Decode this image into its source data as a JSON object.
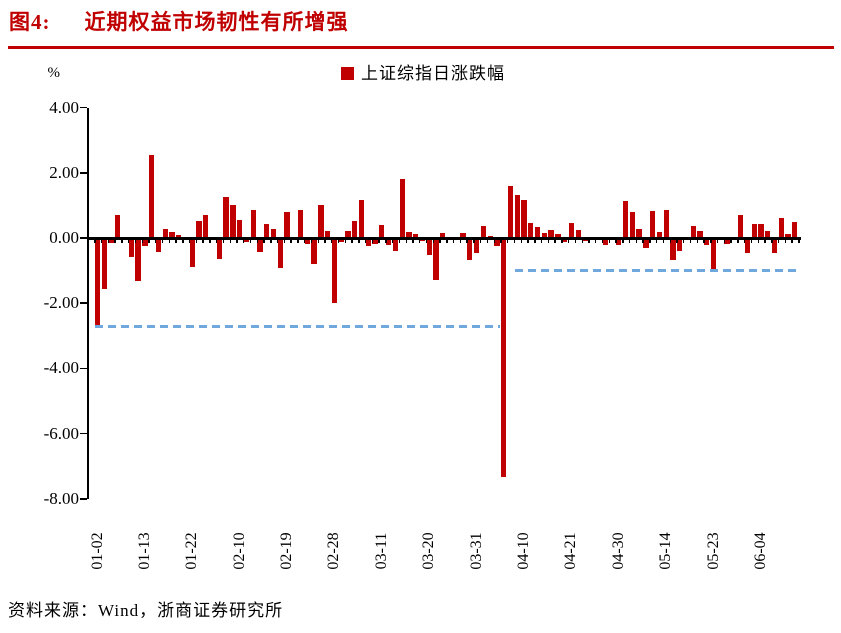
{
  "title": {
    "prefix": "图4:",
    "text": "近期权益市场韧性有所增强"
  },
  "legend": {
    "label": "上证综指日涨跌幅",
    "marker_color": "#C00000"
  },
  "y_axis": {
    "unit_label": "%",
    "ticks": [
      "4.00",
      "2.00",
      "0.00",
      "-2.00",
      "-4.00",
      "-6.00",
      "-8.00"
    ],
    "max": 4.0,
    "min": -8.0
  },
  "source": "资料来源：Wind，浙商证券研究所",
  "colors": {
    "bar": "#C00000",
    "title": "#C00000",
    "rule": "#C00000",
    "dashed_reference_line": "#6FA8DC",
    "axis": "#000000"
  },
  "chart_data": {
    "type": "bar",
    "title": "上证综指日涨跌幅",
    "series_name": "上证综指日涨跌幅",
    "ylabel": "%",
    "ylim": [
      -8.0,
      4.0
    ],
    "grid": false,
    "legend_position": "top-center",
    "x": [
      "01-02",
      "01-03",
      "01-06",
      "01-07",
      "01-08",
      "01-09",
      "01-10",
      "01-13",
      "01-14",
      "01-15",
      "01-16",
      "01-17",
      "01-20",
      "01-21",
      "01-22",
      "01-23",
      "01-24",
      "01-27",
      "02-05",
      "02-06",
      "02-07",
      "02-10",
      "02-11",
      "02-12",
      "02-13",
      "02-14",
      "02-17",
      "02-18",
      "02-19",
      "02-20",
      "02-21",
      "02-24",
      "02-25",
      "02-26",
      "02-27",
      "02-28",
      "03-03",
      "03-04",
      "03-05",
      "03-06",
      "03-07",
      "03-10",
      "03-11",
      "03-12",
      "03-13",
      "03-14",
      "03-17",
      "03-18",
      "03-19",
      "03-20",
      "03-21",
      "03-24",
      "03-25",
      "03-26",
      "03-27",
      "03-28",
      "03-31",
      "04-01",
      "04-02",
      "04-03",
      "04-07",
      "04-08",
      "04-09",
      "04-10",
      "04-11",
      "04-14",
      "04-15",
      "04-16",
      "04-17",
      "04-18",
      "04-21",
      "04-22",
      "04-23",
      "04-24",
      "04-25",
      "04-28",
      "04-29",
      "04-30",
      "05-06",
      "05-07",
      "05-08",
      "05-09",
      "05-12",
      "05-13",
      "05-14",
      "05-15",
      "05-16",
      "05-19",
      "05-20",
      "05-21",
      "05-22",
      "05-23",
      "05-26",
      "05-27",
      "05-28",
      "05-29",
      "05-30",
      "06-03",
      "06-04",
      "06-05",
      "06-06",
      "06-09",
      "06-10",
      "06-11"
    ],
    "values": [
      -2.66,
      -1.57,
      -0.14,
      0.71,
      0.02,
      -0.58,
      -1.33,
      -0.25,
      2.54,
      -0.43,
      0.28,
      0.18,
      0.08,
      -0.05,
      -0.89,
      0.51,
      0.7,
      -0.06,
      -0.65,
      1.27,
      1.01,
      0.56,
      -0.12,
      0.85,
      -0.42,
      0.43,
      0.27,
      -0.93,
      0.81,
      -0.02,
      0.85,
      -0.18,
      -0.8,
      1.02,
      0.23,
      -1.98,
      -0.12,
      0.22,
      0.53,
      1.17,
      -0.25,
      -0.19,
      0.41,
      -0.23,
      -0.39,
      1.81,
      0.19,
      0.11,
      -0.1,
      -0.51,
      -1.29,
      0.15,
      0.0,
      -0.04,
      0.15,
      -0.67,
      -0.46,
      0.38,
      0.05,
      -0.24,
      -7.34,
      1.58,
      1.31,
      1.16,
      0.45,
      0.35,
      0.15,
      0.26,
      0.13,
      -0.11,
      0.45,
      0.25,
      -0.1,
      0.03,
      -0.07,
      -0.2,
      -0.05,
      -0.23,
      1.13,
      0.8,
      0.28,
      -0.3,
      0.82,
      0.17,
      0.86,
      -0.68,
      -0.4,
      0.0,
      0.38,
      0.21,
      -0.22,
      -0.94,
      -0.05,
      -0.18,
      0.02,
      0.7,
      -0.47,
      0.43,
      0.42,
      0.23,
      -0.47,
      0.6,
      0.13,
      0.48
    ],
    "x_tick_labels": [
      "01-02",
      "01-13",
      "01-22",
      "02-10",
      "02-19",
      "02-28",
      "03-11",
      "03-20",
      "03-31",
      "04-10",
      "04-21",
      "04-30",
      "05-14",
      "05-23",
      "06-04"
    ],
    "reference_lines": [
      {
        "value": -2.7,
        "from_index": 0,
        "to_index": 59,
        "style": "dashed",
        "color": "#6FA8DC"
      },
      {
        "value": -1.01,
        "from_index": 62,
        "to_index": 103,
        "style": "dashed",
        "color": "#6FA8DC"
      }
    ]
  }
}
